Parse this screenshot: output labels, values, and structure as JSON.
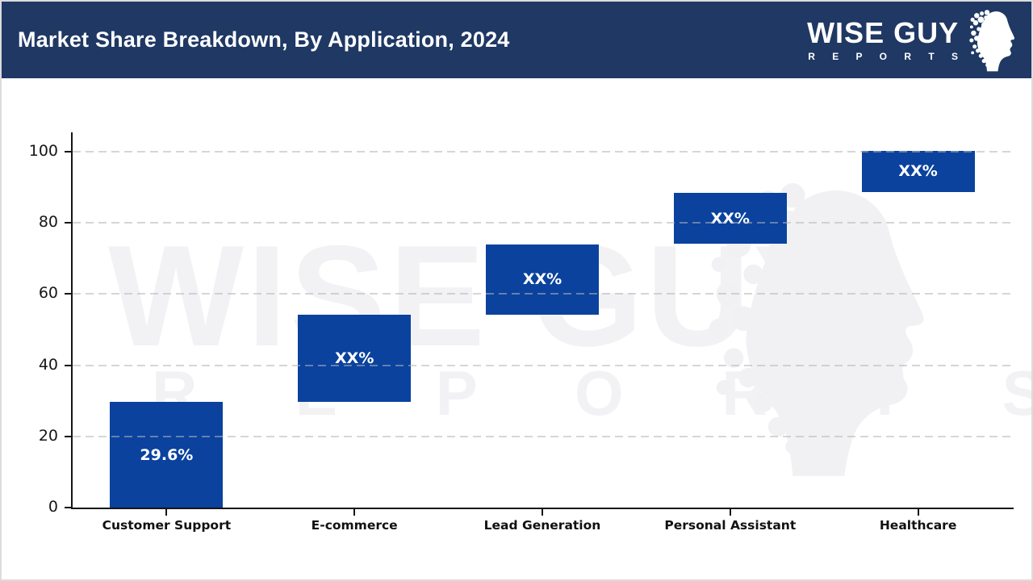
{
  "header": {
    "title": "Market Share Breakdown, By Application, 2024",
    "logo": {
      "line1": "WISE GUY",
      "line2": "R E P O R T S"
    },
    "bg_color": "#1f3864"
  },
  "watermark": {
    "line1": "WISE GUY",
    "line2": "R E P O R T S"
  },
  "chart_data": {
    "type": "bar",
    "subtype": "floating-waterfall",
    "title": "Market Share Breakdown, By Application, 2024",
    "xlabel": "",
    "ylabel": "",
    "ylim": [
      0,
      105
    ],
    "yticks": [
      0,
      20,
      40,
      60,
      80,
      100
    ],
    "grid": "horizontal-dashed",
    "legend": "none",
    "bar_color": "#0a429e",
    "categories": [
      "Customer Support",
      "E-commerce",
      "Lead Generation",
      "Personal Assistant",
      "Healthcare"
    ],
    "bars": [
      {
        "category": "Customer Support",
        "start": 0,
        "end": 29.6,
        "label": "29.6%"
      },
      {
        "category": "E-commerce",
        "start": 29.6,
        "end": 54.1,
        "label": "XX%"
      },
      {
        "category": "Lead Generation",
        "start": 54.3,
        "end": 73.9,
        "label": "XX%"
      },
      {
        "category": "Personal Assistant",
        "start": 74.1,
        "end": 88.4,
        "label": "XX%"
      },
      {
        "category": "Healthcare",
        "start": 88.7,
        "end": 100.2,
        "label": "XX%"
      }
    ]
  }
}
